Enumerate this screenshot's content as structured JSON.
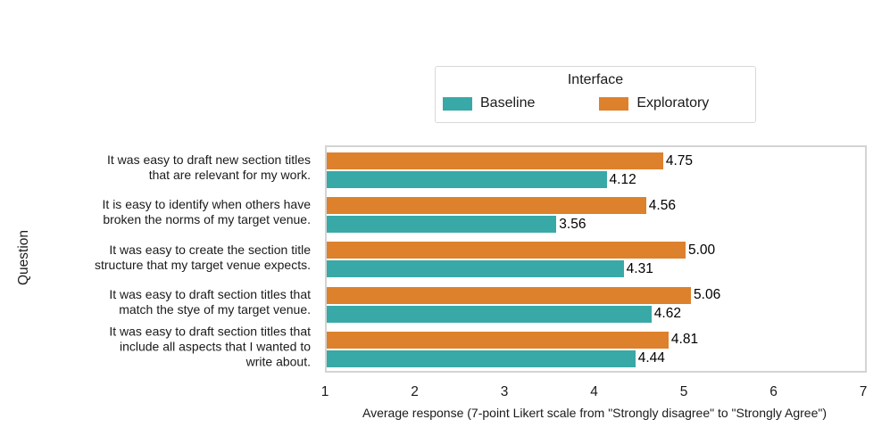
{
  "figure": {
    "background": "#ffffff"
  },
  "legend": {
    "title": "Interface",
    "items": [
      {
        "label": "Baseline",
        "color": "#39A9A7"
      },
      {
        "label": "Exploratory",
        "color": "#DD812C"
      }
    ]
  },
  "chart_data": {
    "type": "bar",
    "orientation": "horizontal",
    "title": "",
    "xlabel": "Average response (7-point Likert scale from \"Strongly disagree\" to \"Strongly Agree\")",
    "ylabel": "Question",
    "xlim": [
      1,
      7
    ],
    "xticks": [
      "1",
      "2",
      "3",
      "4",
      "5",
      "6",
      "7"
    ],
    "grid": false,
    "legend_position": "top-center",
    "categories": [
      "It was easy to draft new section titles\nthat are relevant for my work.",
      "It is easy to identify when others have\nbroken the norms of my target venue.",
      "It was easy to create the section title\nstructure that my target venue expects.",
      "It was easy to draft section titles that\nmatch the stye of my target venue.",
      "It was easy to draft section titles that\ninclude all aspects that I wanted to\nwrite about."
    ],
    "series": [
      {
        "name": "Exploratory",
        "color": "#DD812C",
        "values": [
          4.75,
          4.56,
          5.0,
          5.06,
          4.81
        ],
        "labels": [
          "4.75",
          "4.56",
          "5.00",
          "5.06",
          "4.81"
        ]
      },
      {
        "name": "Baseline",
        "color": "#39A9A7",
        "values": [
          4.12,
          3.56,
          4.31,
          4.62,
          4.44
        ],
        "labels": [
          "4.12",
          "3.56",
          "4.31",
          "4.62",
          "4.44"
        ]
      }
    ]
  }
}
